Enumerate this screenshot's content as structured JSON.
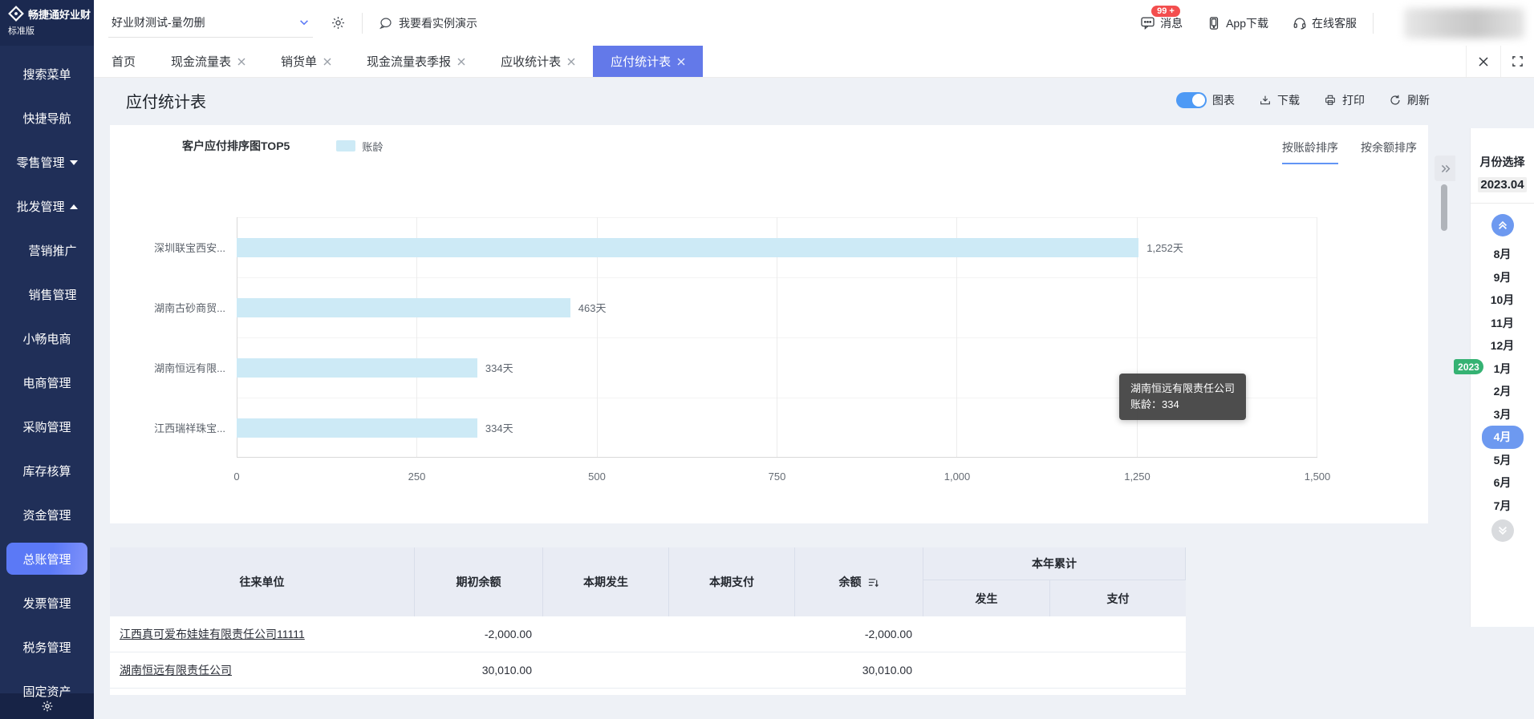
{
  "colors": {
    "accent_blue": "#6379e9",
    "bar_fill": "#cdeaf6",
    "month_blue": "#6d99f0",
    "badge_red": "#f34e4e",
    "badge_green": "#35b273",
    "sidebar_navy": "#202f58"
  },
  "topbar": {
    "logo_title": "畅捷通好业财",
    "logo_subtitle": "标准版",
    "org_dropdown": "好业财测试-量勿删",
    "demo_link": "我要看实例演示",
    "messages_label": "消息",
    "messages_badge": "99 +",
    "app_download_label": "App下载",
    "support_label": "在线客服"
  },
  "sidebar": {
    "items": [
      {
        "label": "搜索菜单"
      },
      {
        "label": "快捷导航"
      },
      {
        "label": "零售管理",
        "chevron": "down"
      },
      {
        "label": "批发管理",
        "chevron": "up"
      },
      {
        "label": "营销推广",
        "sub": true
      },
      {
        "label": "销售管理",
        "sub": true
      },
      {
        "label": "小畅电商"
      },
      {
        "label": "电商管理"
      },
      {
        "label": "采购管理"
      },
      {
        "label": "库存核算"
      },
      {
        "label": "资金管理"
      },
      {
        "label": "总账管理",
        "active": true
      },
      {
        "label": "发票管理"
      },
      {
        "label": "税务管理"
      },
      {
        "label": "固定资产",
        "clipped": true
      }
    ]
  },
  "tabs": {
    "items": [
      {
        "label": "首页",
        "closable": false
      },
      {
        "label": "现金流量表",
        "closable": true
      },
      {
        "label": "销货单",
        "closable": true
      },
      {
        "label": "现金流量表季报",
        "closable": true
      },
      {
        "label": "应收统计表",
        "closable": true
      },
      {
        "label": "应付统计表",
        "closable": true,
        "active": true
      }
    ]
  },
  "page": {
    "title": "应付统计表",
    "toggle_label": "图表",
    "download_label": "下载",
    "print_label": "打印",
    "refresh_label": "刷新"
  },
  "chart": {
    "sort_tab_age": "按账龄排序",
    "sort_tab_balance": "按余额排序",
    "tooltip": {
      "title": "湖南恒远有限责任公司",
      "line": "账龄：334"
    }
  },
  "chart_data": {
    "type": "bar",
    "orientation": "horizontal",
    "title": "客户应付排序图TOP5",
    "legend": [
      "账龄"
    ],
    "legend_position": "top",
    "categories": [
      "深圳联宝西安...",
      "湖南古砂商贸...",
      "湖南恒远有限...",
      "江西瑞祥珠宝..."
    ],
    "series": [
      {
        "name": "账龄",
        "values": [
          1252,
          463,
          334,
          334
        ]
      }
    ],
    "value_labels": [
      "1,252天",
      "463天",
      "334天",
      "334天"
    ],
    "unit": "天",
    "xlim": [
      0,
      1500
    ],
    "xticks": [
      "0",
      "250",
      "500",
      "750",
      "1,000",
      "1,250",
      "1,500"
    ],
    "grid": true,
    "bar_color": "#cdeaf6"
  },
  "table": {
    "headers": [
      "往来单位",
      "期初余额",
      "本期发生",
      "本期支付",
      "余额"
    ],
    "group_header": {
      "label": "本年累计",
      "children": [
        "发生",
        "支付"
      ]
    },
    "rows": [
      {
        "name": "江西真可爱布娃娃有限责任公司11111",
        "opening": "-2,000.00",
        "occur": "",
        "pay": "",
        "balance": "-2,000.00",
        "ytd_occur": "",
        "ytd_pay": ""
      },
      {
        "name": "湖南恒远有限责任公司",
        "opening": "30,010.00",
        "occur": "",
        "pay": "",
        "balance": "30,010.00",
        "ytd_occur": "",
        "ytd_pay": ""
      }
    ]
  },
  "month_panel": {
    "title": "月份选择",
    "current": "2023.04",
    "year_badge": "2023",
    "months": [
      "8月",
      "9月",
      "10月",
      "11月",
      "12月",
      "1月",
      "2月",
      "3月",
      "4月",
      "5月",
      "6月",
      "7月"
    ],
    "selected": "4月"
  }
}
